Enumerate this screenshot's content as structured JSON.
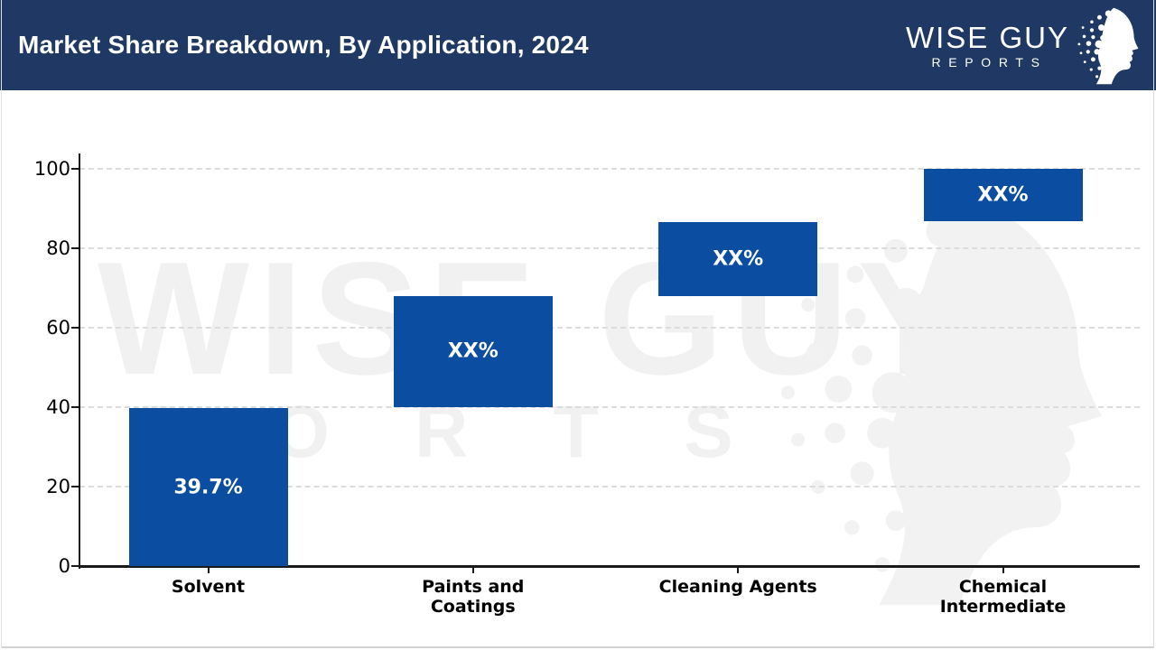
{
  "header": {
    "title": "Market Share Breakdown, By Application, 2024",
    "logo": {
      "wordmark": "WISE GUY",
      "subtitle": "REPORTS"
    }
  },
  "watermark": {
    "wordmark": "WISE GUY",
    "subtitle": "PORTS"
  },
  "colors": {
    "header_bg": "#1f3864",
    "bar": "#0b4da1",
    "bar_label": "#ffffff",
    "grid": "#dcdcdc",
    "axis": "#1a1a1a",
    "watermark": "#f1f1f1"
  },
  "chart_data": {
    "type": "bar",
    "subtype": "waterfall",
    "title": "Market Share Breakdown, By Application, 2024",
    "categories": [
      "Solvent",
      "Paints and Coatings",
      "Cleaning Agents",
      "Chemical Intermediate"
    ],
    "bars": [
      {
        "category": "Solvent",
        "start": 0,
        "end": 39.7,
        "label": "39.7%"
      },
      {
        "category": "Paints and Coatings",
        "start": 40,
        "end": 68,
        "label": "XX%"
      },
      {
        "category": "Cleaning Agents",
        "start": 68,
        "end": 86.5,
        "label": "XX%"
      },
      {
        "category": "Chemical Intermediate",
        "start": 86.8,
        "end": 100,
        "label": "XX%"
      }
    ],
    "xlabel": "",
    "ylabel": "",
    "yticks": [
      0,
      20,
      40,
      60,
      80,
      100
    ],
    "ylim": [
      0,
      104
    ],
    "grid": "horizontal-dashed",
    "legend": "none"
  }
}
